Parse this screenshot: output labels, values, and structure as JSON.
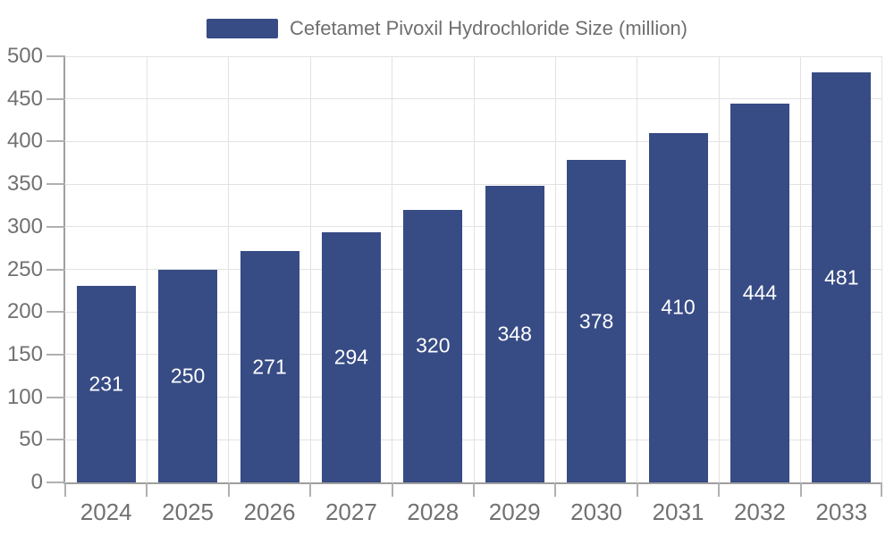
{
  "chart_data": {
    "type": "bar",
    "title": "",
    "legend": "Cefetamet Pivoxil Hydrochloride Size (million)",
    "categories": [
      "2024",
      "2025",
      "2026",
      "2027",
      "2028",
      "2029",
      "2030",
      "2031",
      "2032",
      "2033"
    ],
    "values": [
      231,
      250,
      271,
      294,
      320,
      348,
      378,
      410,
      444,
      481
    ],
    "xlabel": "",
    "ylabel": "",
    "ylim": [
      0,
      500
    ],
    "ytick_step": 50,
    "yticks": [
      0,
      50,
      100,
      150,
      200,
      250,
      300,
      350,
      400,
      450,
      500
    ],
    "grid": true,
    "legend_position": "top",
    "value_label_position": "inside-center"
  },
  "colors": {
    "bar": "#374b85",
    "value_text": "#ffffff",
    "axis_text": "#717171",
    "legend_text": "#6f6f6f",
    "grid_line": "#e2e2e2",
    "axis_line": "#9e9e9e",
    "tick_line": "#b0b0b0",
    "background": "#ffffff"
  }
}
